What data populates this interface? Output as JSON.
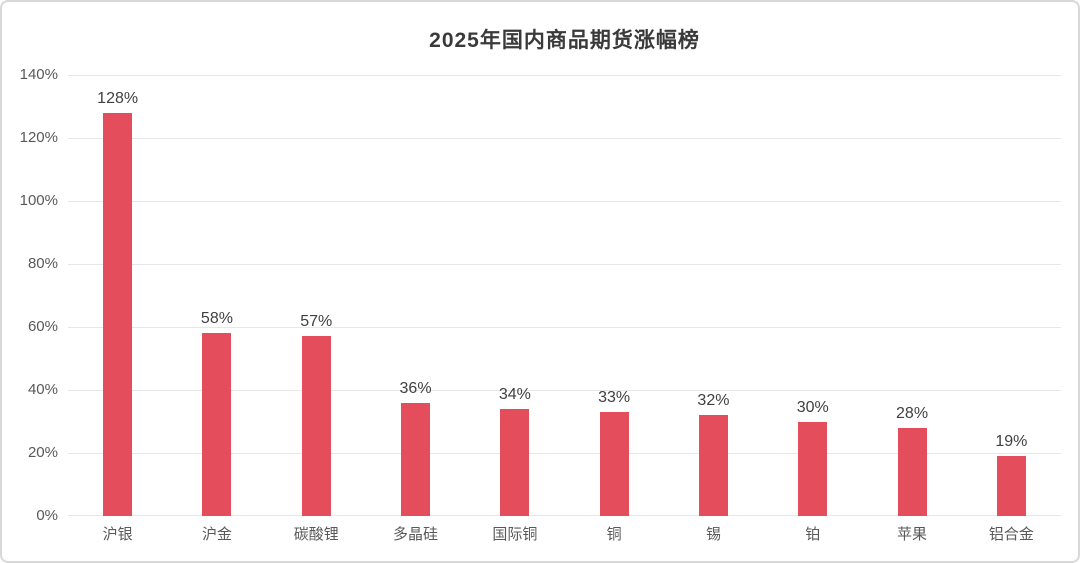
{
  "page": {
    "background_color": "#ffffff",
    "frame_border_color": "#d8d8d8"
  },
  "chart_data": {
    "type": "bar",
    "title": "2025年国内商品期货涨幅榜",
    "categories": [
      "沪银",
      "沪金",
      "碳酸锂",
      "多晶硅",
      "国际铜",
      "铜",
      "锡",
      "铂",
      "苹果",
      "铝合金"
    ],
    "values": [
      128,
      58,
      57,
      36,
      34,
      33,
      32,
      30,
      28,
      19
    ],
    "data_labels": [
      "128%",
      "58%",
      "57%",
      "36%",
      "34%",
      "33%",
      "32%",
      "30%",
      "28%",
      "19%"
    ],
    "y_ticks": [
      "0%",
      "20%",
      "40%",
      "60%",
      "80%",
      "100%",
      "120%",
      "140%"
    ],
    "y_tick_step": 20,
    "ylim": [
      0,
      140
    ],
    "xlabel": "",
    "ylabel": "",
    "grid": "horizontal",
    "legend": "none",
    "bar_color": "#e44d5c",
    "value_label_color": "#404040",
    "axis_label_color": "#595959",
    "gridline_color": "#e7e7e7",
    "title_color": "#3a3a3a"
  }
}
